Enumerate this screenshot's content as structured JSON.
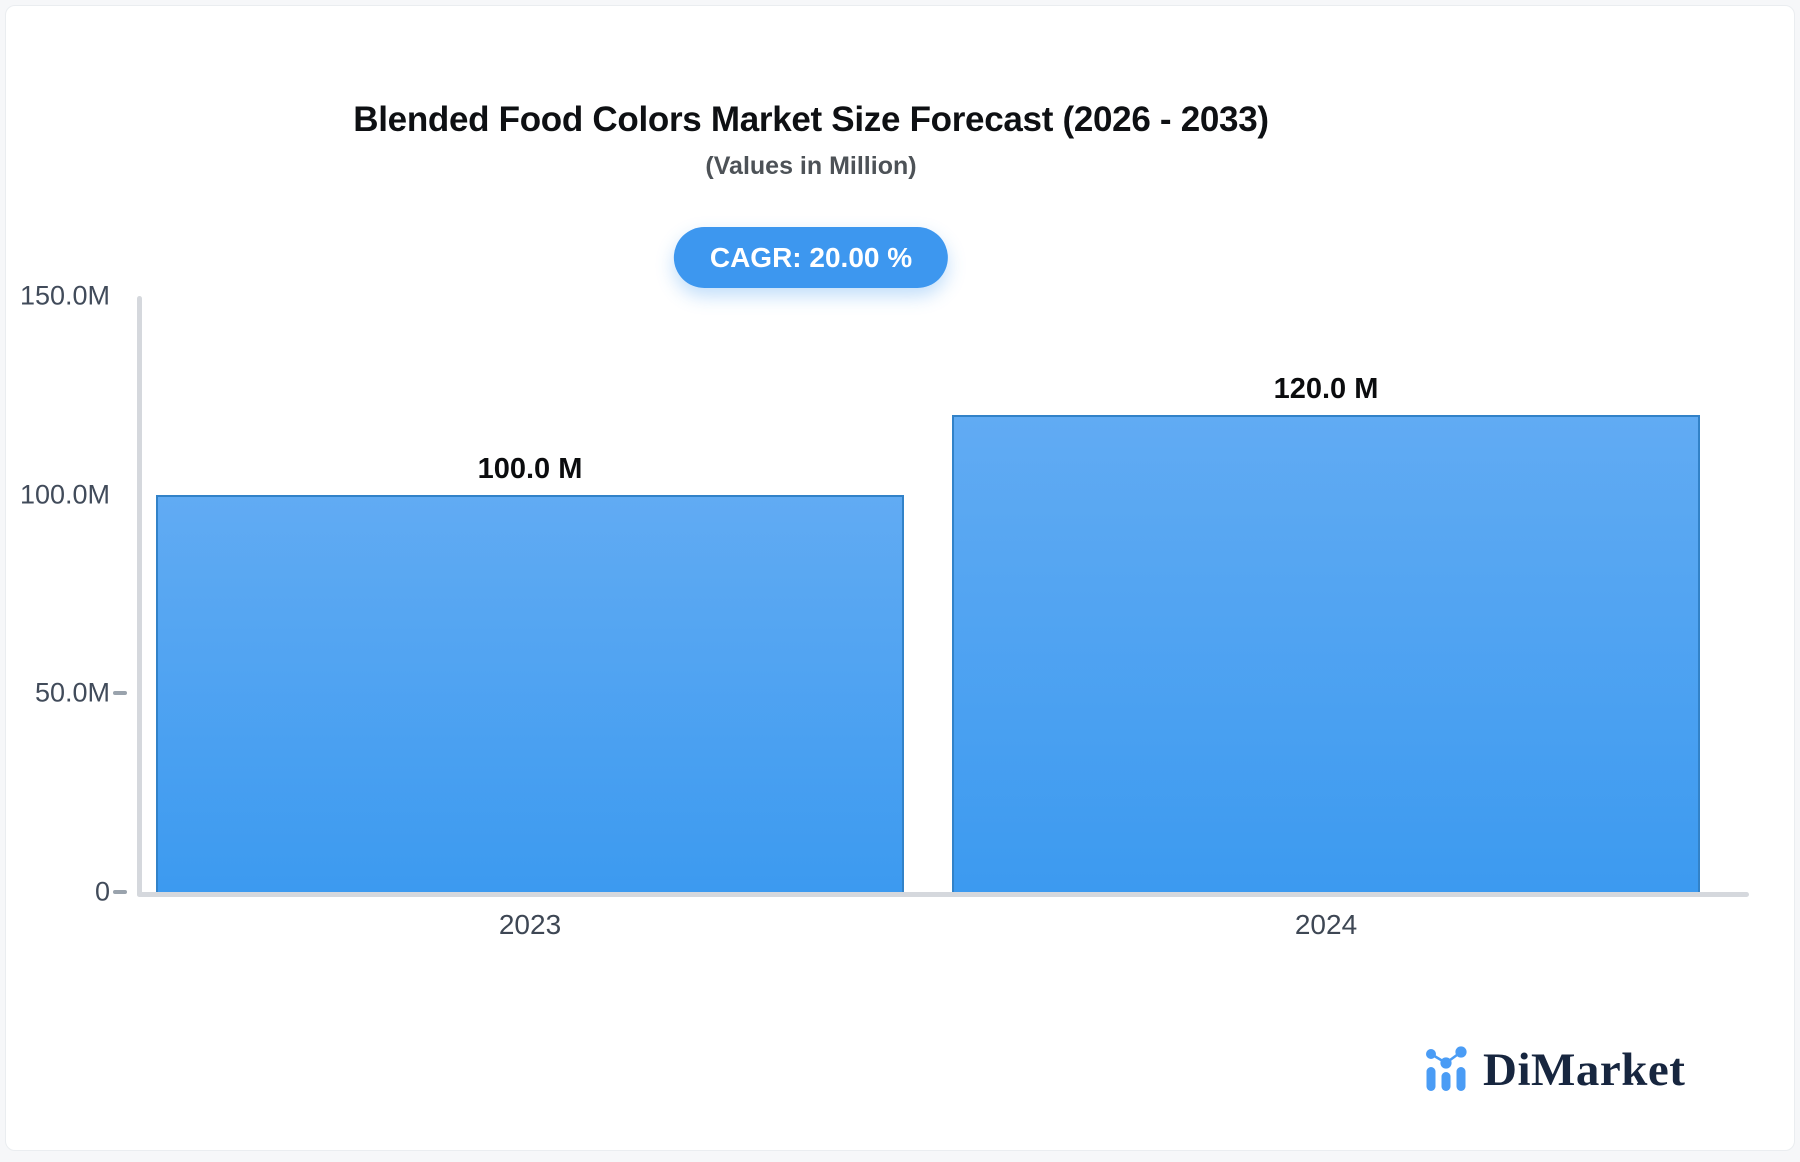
{
  "header": {
    "title": "Blended Food Colors Market Size Forecast (2026 - 2033)",
    "subtitle": "(Values in Million)",
    "cagr_badge": "CAGR: 20.00 %"
  },
  "footer": {
    "brand_name": "DiMarket",
    "logo_icon": "bar-chart-with-trendline-icon"
  },
  "colors": {
    "accent_blue": "#3d97ef",
    "bar_fill_top": "#61abf3",
    "bar_fill_bottom": "#3c9af0",
    "bar_border": "#3282c8",
    "axis_gray": "#d5d8dd",
    "tick_text": "#414b5a",
    "logo_blue": "#4a9cf5",
    "logo_navy": "#17263f"
  },
  "chart_data": {
    "type": "bar",
    "title": "Blended Food Colors Market Size Forecast (2026 - 2033)",
    "subtitle": "(Values in Million)",
    "annotation": "CAGR: 20.00 %",
    "unit": "Million",
    "categories": [
      "2023",
      "2024"
    ],
    "values": [
      100.0,
      120.0
    ],
    "value_labels": [
      "100.0 M",
      "120.0 M"
    ],
    "ylim": [
      0,
      150
    ],
    "yticks": [
      {
        "label": "150.0M",
        "value": 150,
        "dash": false
      },
      {
        "label": "100.0M",
        "value": 100,
        "dash": false
      },
      {
        "label": "50.0M",
        "value": 50,
        "dash": true
      },
      {
        "label": "0",
        "value": 0,
        "dash": true
      }
    ],
    "grid": false,
    "legend": "none"
  }
}
